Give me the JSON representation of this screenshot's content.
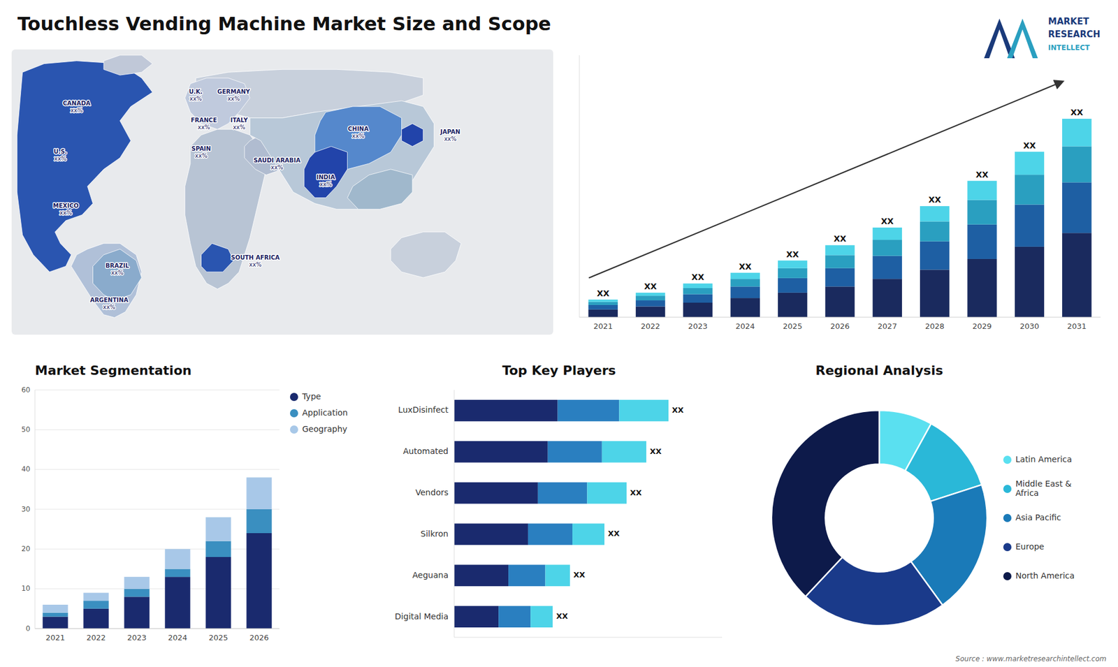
{
  "title": "Touchless Vending Machine Market Size and Scope",
  "annotations": [
    "MARKET",
    "RESEARCH",
    "INTELLECT",
    "Source : www.marketresearchintellect.com"
  ],
  "chart_data": [
    {
      "type": "map",
      "categories": [
        "CANADA",
        "U.S.",
        "MEXICO",
        "BRAZIL",
        "ARGENTINA",
        "U.K.",
        "FRANCE",
        "SPAIN",
        "GERMANY",
        "ITALY",
        "SAUDI ARABIA",
        "SOUTH AFRICA",
        "CHINA",
        "INDIA",
        "JAPAN"
      ],
      "value_labels": [
        "xx%",
        "xx%",
        "xx%",
        "xx%",
        "xx%",
        "xx%",
        "xx%",
        "xx%",
        "xx%",
        "xx%",
        "xx%",
        "xx%",
        "xx%",
        "xx%",
        "xx%"
      ]
    },
    {
      "type": "bar",
      "stacked": true,
      "categories": [
        "2021",
        "2022",
        "2023",
        "2024",
        "2025",
        "2026",
        "2027",
        "2028",
        "2029",
        "2030",
        "2031"
      ],
      "series": [
        {
          "color": "#1a2a5e",
          "values": [
            1.0,
            1.4,
            1.9,
            2.5,
            3.2,
            4.0,
            5.0,
            6.2,
            7.6,
            9.2,
            11.0
          ]
        },
        {
          "color": "#1e5fa3",
          "values": [
            0.6,
            0.8,
            1.1,
            1.5,
            1.9,
            2.4,
            3.0,
            3.7,
            4.5,
            5.5,
            6.6
          ]
        },
        {
          "color": "#2a9fc0",
          "values": [
            0.4,
            0.6,
            0.8,
            1.0,
            1.3,
            1.7,
            2.1,
            2.6,
            3.2,
            3.9,
            4.7
          ]
        },
        {
          "color": "#4dd4e8",
          "values": [
            0.3,
            0.4,
            0.6,
            0.8,
            1.0,
            1.3,
            1.6,
            2.0,
            2.5,
            3.0,
            3.6
          ]
        }
      ],
      "ylim": [
        0,
        34.188
      ],
      "tick_labels": "x",
      "value_labels": [
        "XX",
        "XX",
        "XX",
        "XX",
        "XX",
        "XX",
        "XX",
        "XX",
        "XX",
        "XX",
        "XX"
      ]
    },
    {
      "type": "bar",
      "title": "Market Segmentation",
      "stacked": true,
      "categories": [
        "2021",
        "2022",
        "2023",
        "2024",
        "2025",
        "2026"
      ],
      "series": [
        {
          "name": "Type",
          "color": "#1a2a6e",
          "values": [
            3,
            5,
            8,
            13,
            18,
            24
          ]
        },
        {
          "name": "Application",
          "color": "#3a8fc0",
          "values": [
            1,
            2,
            2,
            2,
            4,
            6
          ]
        },
        {
          "name": "Geography",
          "color": "#a8c8e8",
          "values": [
            2,
            2,
            3,
            5,
            6,
            8
          ]
        }
      ],
      "ylim": [
        0,
        60
      ],
      "yticks": [
        0,
        10,
        20,
        30,
        40,
        50,
        60
      ],
      "grid": true,
      "legend": "right"
    },
    {
      "type": "bar",
      "title": "Top Key Players",
      "orientation": "horizontal",
      "stacked": true,
      "categories": [
        "LuxDisinfect",
        "Automated",
        "Vendors",
        "Silkron",
        "Aeguana",
        "Digital Media"
      ],
      "series": [
        {
          "color": "#1a2a6e",
          "values": [
            0.42,
            0.38,
            0.34,
            0.3,
            0.22,
            0.18
          ]
        },
        {
          "color": "#2a7fc0",
          "values": [
            0.25,
            0.22,
            0.2,
            0.18,
            0.15,
            0.13
          ]
        },
        {
          "color": "#4dd4e8",
          "values": [
            0.2,
            0.18,
            0.16,
            0.13,
            0.1,
            0.09
          ]
        }
      ],
      "xlim": [
        0,
        1.0875
      ],
      "tick_labels": "y",
      "value_labels": [
        "XX",
        "XX",
        "XX",
        "XX",
        "XX",
        "XX"
      ]
    },
    {
      "type": "pie",
      "title": "Regional Analysis",
      "categories": [
        "Latin America",
        "Middle East &\nAfrica",
        "Asia Pacific",
        "Europe",
        "North America"
      ],
      "values": [
        8,
        12,
        20,
        22,
        38
      ],
      "colors": [
        "#5ae0f0",
        "#2ab8d8",
        "#1a7ab8",
        "#1a3a8a",
        "#0d1a4a"
      ],
      "legend": "right"
    }
  ]
}
